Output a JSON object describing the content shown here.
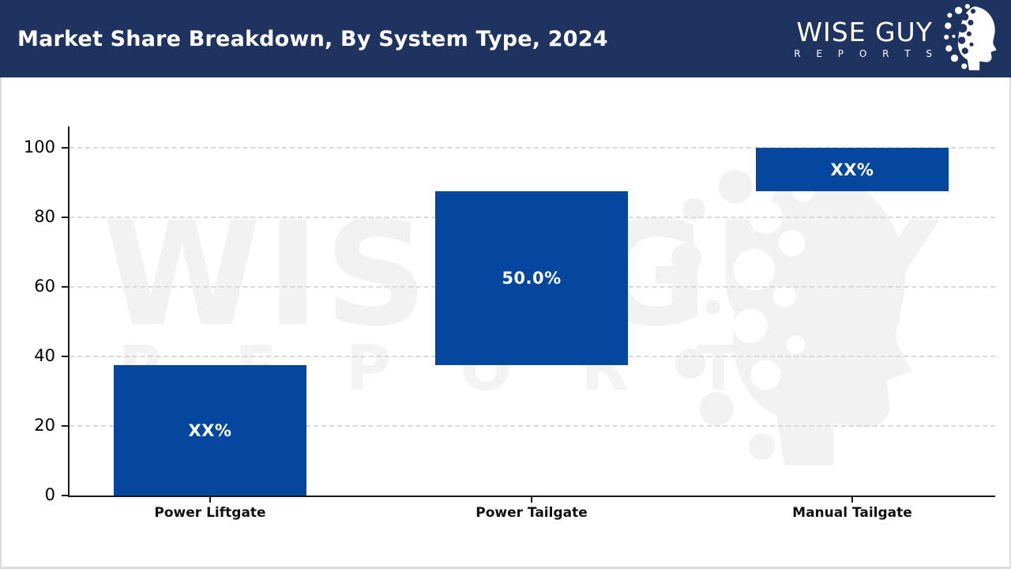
{
  "header": {
    "title": "Market Share Breakdown, By System Type, 2024",
    "bg_color": "#1f3360",
    "logo": {
      "line1": "WISE GUY",
      "line2": "R E P O R T S"
    }
  },
  "watermark": {
    "line1": "WISE GUY",
    "line2": "R E P O R T S"
  },
  "chart_data": {
    "type": "bar",
    "subtype": "waterfall-stacked-percent",
    "title": "Market Share Breakdown, By System Type, 2024",
    "categories": [
      "Power Liftgate",
      "Power Tailgate",
      "Manual Tailgate"
    ],
    "series": [
      {
        "name": "Market Share %",
        "starts": [
          0,
          37.5,
          87.5
        ],
        "values": [
          37.5,
          50.0,
          12.5
        ]
      }
    ],
    "bar_labels": [
      "XX%",
      "50.0%",
      "XX%"
    ],
    "bar_color": "#05479e",
    "xlabel": "",
    "ylabel": "",
    "ylim": [
      0,
      100
    ],
    "yticks": [
      0,
      20,
      40,
      60,
      80,
      100
    ],
    "grid": "horizontal-dashed",
    "legend": "none"
  }
}
